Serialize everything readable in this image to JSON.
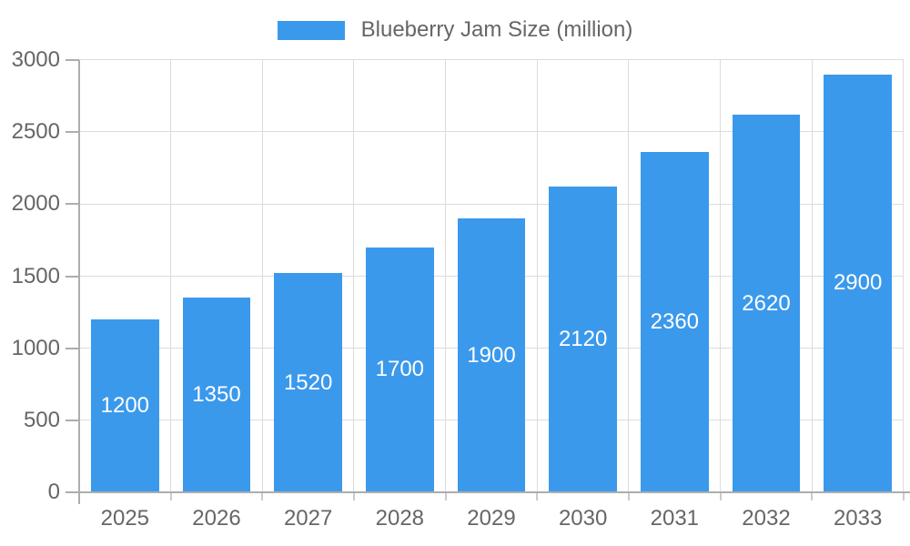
{
  "page": {
    "background": "#ffffff"
  },
  "legend": {
    "label": "Blueberry Jam Size (million)"
  },
  "chart_data": {
    "type": "bar",
    "title": "Blueberry Jam Size (million)",
    "legend": {
      "label": "Blueberry Jam Size (million)",
      "position": "top-center"
    },
    "categories": [
      "2025",
      "2026",
      "2027",
      "2028",
      "2029",
      "2030",
      "2031",
      "2032",
      "2033"
    ],
    "series": [
      {
        "name": "Blueberry Jam Size (million)",
        "values": [
          1200,
          1350,
          1520,
          1700,
          1900,
          2120,
          2360,
          2620,
          2900
        ]
      }
    ],
    "values": [
      1200,
      1350,
      1520,
      1700,
      1900,
      2120,
      2360,
      2620,
      2900
    ],
    "bar_value_labels": [
      "1200",
      "1350",
      "1520",
      "1700",
      "1900",
      "2120",
      "2360",
      "2620",
      "2900"
    ],
    "xlabel": "",
    "ylabel": "",
    "ylim": [
      0,
      3000
    ],
    "yticks": [
      0,
      500,
      1000,
      1500,
      2000,
      2500,
      3000
    ],
    "grid": true,
    "colors": {
      "bar": "#3B99EC",
      "bar_label": "#FFFFFF",
      "axis_text": "#666666",
      "grid_line": "#DCDCDC",
      "axis_line": "#ADADAD",
      "x_tick_line": "#CCCCCC"
    }
  }
}
